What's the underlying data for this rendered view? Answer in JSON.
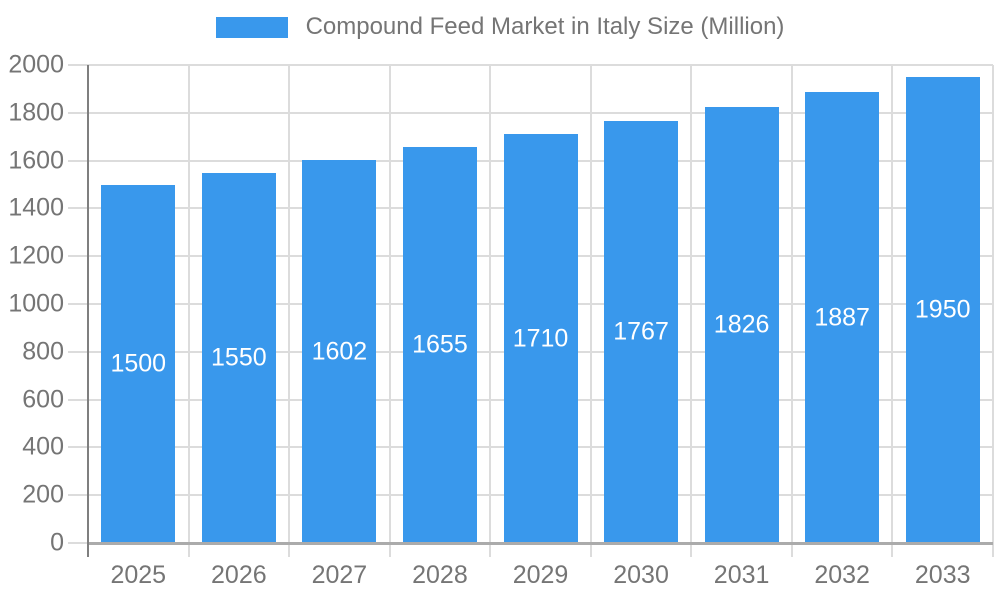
{
  "legend": {
    "label": "Compound Feed Market in Italy Size (Million)"
  },
  "colors": {
    "bar": "#3998EC",
    "text": "#757575",
    "bar_label": "#FFFFFF",
    "grid": "#DCDCDC",
    "baseline": "#ABABAB",
    "axis": "#7F7F7F",
    "background": "#FFFFFF"
  },
  "chart_data": {
    "type": "bar",
    "title": "Compound Feed Market in Italy Size (Million)",
    "categories": [
      "2025",
      "2026",
      "2027",
      "2028",
      "2029",
      "2030",
      "2031",
      "2032",
      "2033"
    ],
    "values": [
      1500,
      1550,
      1602,
      1655,
      1710,
      1767,
      1826,
      1887,
      1950
    ],
    "xlabel": "",
    "ylabel": "",
    "ylim": [
      0,
      2000
    ],
    "ytick_step": 200,
    "grid": true,
    "bar_value_labels": "centered-white",
    "legend_position": "top-center"
  }
}
